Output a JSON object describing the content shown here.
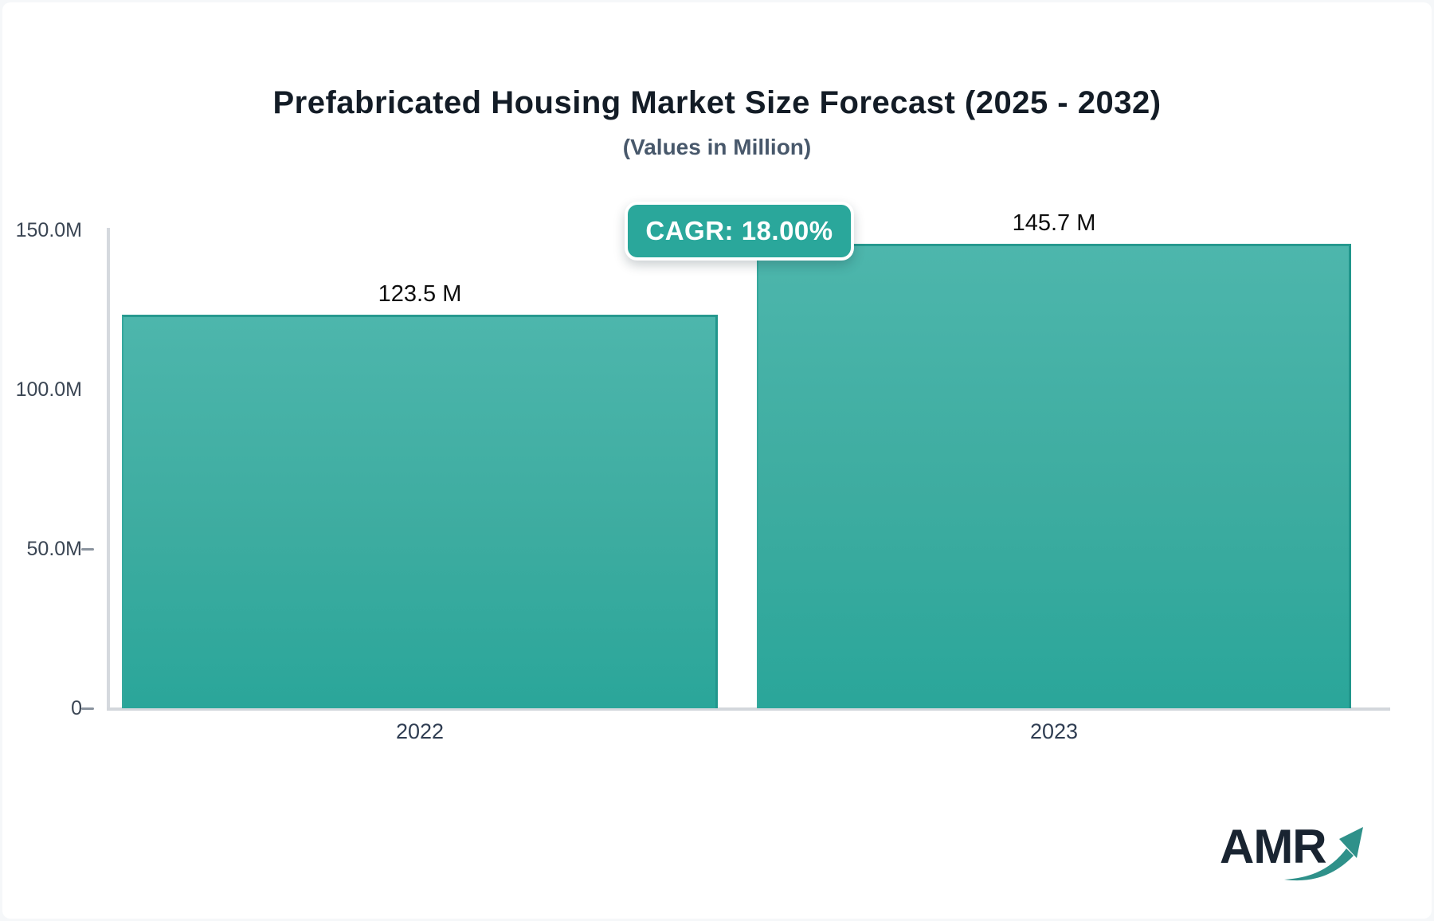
{
  "chart_data": {
    "type": "bar",
    "title": "Prefabricated Housing Market Size Forecast (2025 - 2032)",
    "subtitle": "(Values in Million)",
    "cagr_badge": "CAGR: 18.00%",
    "categories": [
      "2022",
      "2023"
    ],
    "values": [
      123.5,
      145.7
    ],
    "value_labels": [
      "123.5 M",
      "145.7 M"
    ],
    "ylim": [
      0,
      150
    ],
    "ytick_labels": [
      "150.0M",
      "100.0M",
      "50.0M",
      "0"
    ],
    "grid": false,
    "legend": "none",
    "colors": {
      "bar_top": "#4db6ac",
      "bar_bottom": "#2aa69a",
      "bar_edge": "#27998f",
      "badge_bg": "#2aa79b",
      "badge_text": "#ffffff",
      "axis_line": "#d5d9de",
      "title_text": "#131c26",
      "subtitle_text": "#48586b",
      "tick_text": "#3a4553"
    }
  },
  "logo": {
    "text": "AMR",
    "arrow_color": "#2f918a"
  }
}
